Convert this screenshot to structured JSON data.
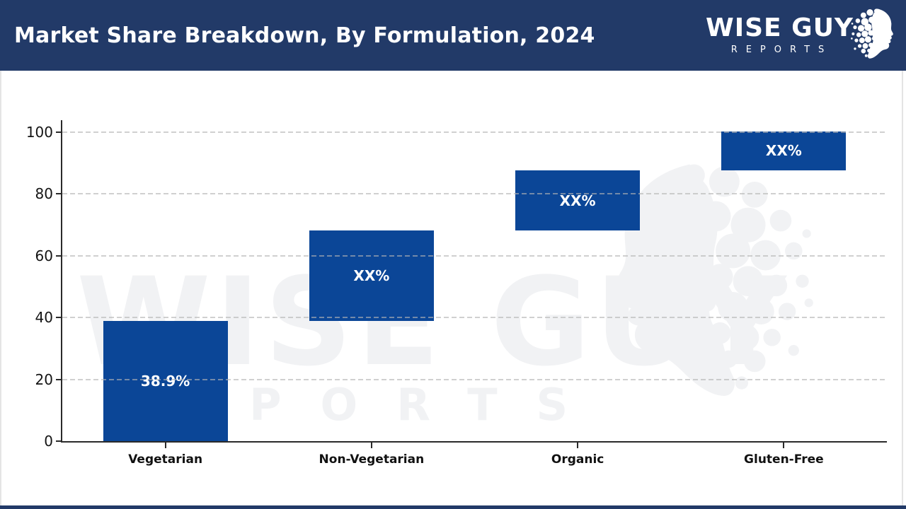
{
  "header": {
    "title": "Market Share Breakdown, By Formulation, 2024",
    "logo": {
      "line1": "WISE GUY",
      "line2": "REPORTS"
    }
  },
  "watermark": {
    "line1": "WISE GUY",
    "line2": "REPORTS"
  },
  "chart_data": {
    "type": "bar",
    "subtype": "floating-waterfall",
    "title": "Market Share Breakdown, By Formulation, 2024",
    "categories": [
      "Vegetarian",
      "Non-Vegetarian",
      "Organic",
      "Gluten-Free"
    ],
    "bars": [
      {
        "category": "Vegetarian",
        "from": 0,
        "to": 38.9,
        "label": "38.9%"
      },
      {
        "category": "Non-Vegetarian",
        "from": 38.9,
        "to": 68.1,
        "label": "XX%"
      },
      {
        "category": "Organic",
        "from": 68.1,
        "to": 87.6,
        "label": "XX%"
      },
      {
        "category": "Gluten-Free",
        "from": 87.6,
        "to": 100.3,
        "label": "XX%"
      }
    ],
    "yticks": [
      0,
      20,
      40,
      60,
      80,
      100
    ],
    "ylim": [
      0,
      104.5
    ],
    "xlabel": "",
    "ylabel": "",
    "grid": "horizontal-dashed-over-bars",
    "legend": "none",
    "bar_color": "#0b4697",
    "bar_label_color": "#ffffff"
  },
  "colors": {
    "header_bg": "#223a68",
    "footer_bg": "#223a68",
    "bar": "#0b4697",
    "watermark": "#f1f2f4",
    "gridline": "#bbbbbb",
    "axis": "#2a2a2a"
  }
}
